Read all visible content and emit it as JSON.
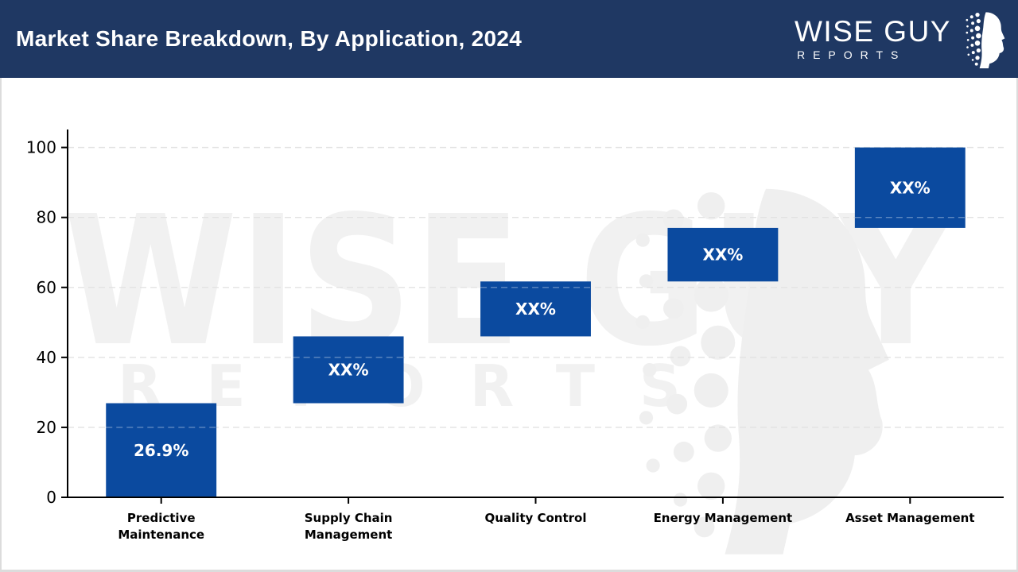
{
  "header": {
    "title": "Market Share Breakdown, By Application, 2024",
    "logo": {
      "line1": "WISE GUY",
      "line2": "REPORTS"
    }
  },
  "watermark": {
    "line1": "WISE GUY",
    "line2": "REPORTS"
  },
  "colors": {
    "header_bg": "#1f3863",
    "bar": "#0b4a9f",
    "grid": "#e2e2e2",
    "axis": "#000000",
    "value_label": "#ffffff",
    "watermark": "#f1f1f1",
    "panel_border": "#dcdcdc"
  },
  "chart_data": {
    "type": "bar",
    "subtype": "waterfall",
    "title": "Market Share Breakdown, By Application, 2024",
    "xlabel": "",
    "ylabel": "",
    "categories": [
      "Predictive Maintenance",
      "Supply Chain Management",
      "Quality Control",
      "Energy Management",
      "Asset Management"
    ],
    "category_lines": [
      [
        "Predictive",
        "Maintenance"
      ],
      [
        "Supply Chain",
        "Management"
      ],
      [
        "Quality Control"
      ],
      [
        "Energy Management"
      ],
      [
        "Asset Management"
      ]
    ],
    "segments": [
      {
        "category": "Predictive Maintenance",
        "start": 0,
        "end": 26.9,
        "label": "26.9%"
      },
      {
        "category": "Supply Chain Management",
        "start": 26.9,
        "end": 46.0,
        "label": "XX%"
      },
      {
        "category": "Quality Control",
        "start": 46.0,
        "end": 61.7,
        "label": "XX%"
      },
      {
        "category": "Energy Management",
        "start": 61.7,
        "end": 77.0,
        "label": "XX%"
      },
      {
        "category": "Asset Management",
        "start": 77.0,
        "end": 100.0,
        "label": "XX%"
      }
    ],
    "ylim": [
      0,
      104
    ],
    "yticks": [
      0,
      20,
      40,
      60,
      80,
      100
    ],
    "grid": true,
    "grid_style": "dashed",
    "legend": false,
    "bar_color": "#0b4a9f",
    "value_label_color": "#ffffff"
  }
}
